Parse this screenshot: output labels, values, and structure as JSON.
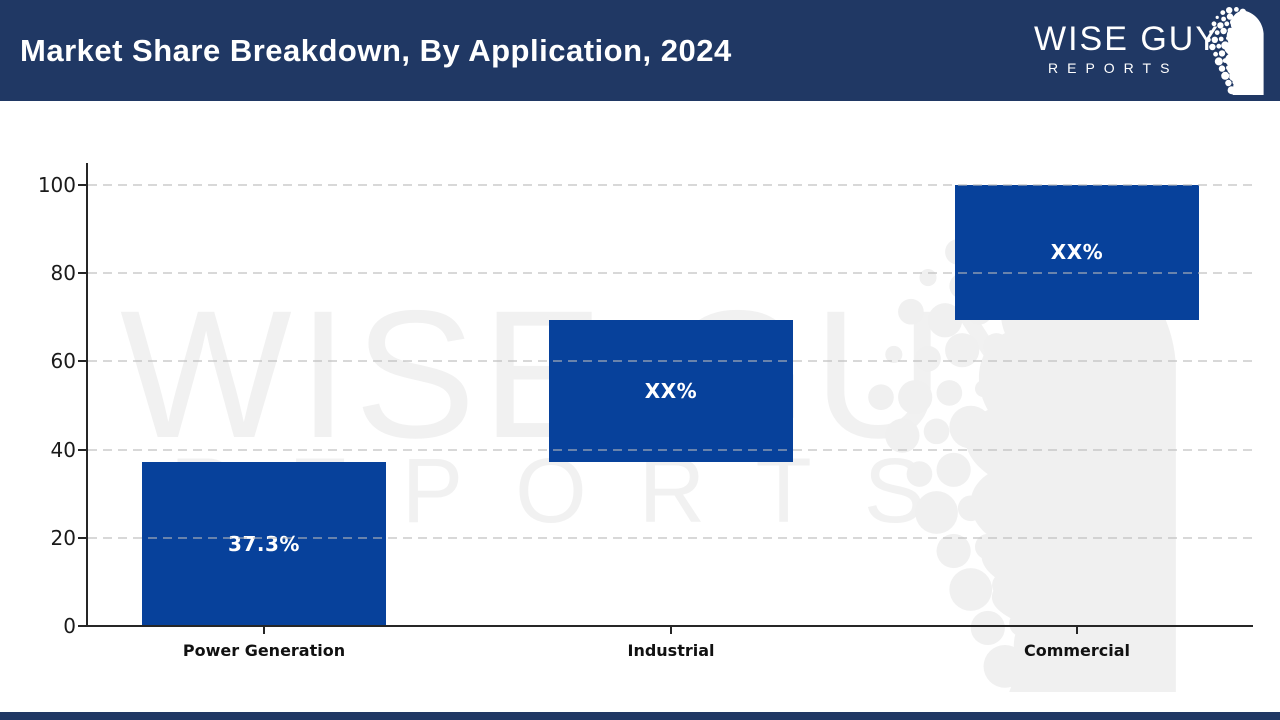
{
  "header": {
    "title": "Market Share Breakdown, By Application, 2024",
    "logo": {
      "wordmark": "WISE GUY",
      "subtext": "REPORTS"
    }
  },
  "watermark": {
    "wordmark": "WISE GUY",
    "subtext": "REPORTS"
  },
  "chart_data": {
    "type": "bar",
    "variant": "waterfall",
    "title": "Market Share Breakdown, By Application, 2024",
    "categories": [
      "Power Generation",
      "Industrial",
      "Commercial"
    ],
    "segments": [
      {
        "category": "Power Generation",
        "start": 0,
        "end": 37.3,
        "label": "37.3%"
      },
      {
        "category": "Industrial",
        "start": 37.3,
        "end": 69.5,
        "label": "XX%"
      },
      {
        "category": "Commercial",
        "start": 69.5,
        "end": 100,
        "label": "XX%"
      }
    ],
    "ylim": [
      0,
      100
    ],
    "yticks": [
      0,
      20,
      40,
      60,
      80,
      100
    ],
    "xlabel": "",
    "ylabel": "",
    "grid": {
      "axis": "y",
      "style": "dashed",
      "color": "#d9d9d9",
      "over_bars": true
    },
    "legend": "none",
    "bar_color": "#07419B",
    "bar_label_color": "#ffffff"
  },
  "colors": {
    "header_bg": "#203864",
    "footer_bg": "#203864",
    "chart_bg": "#ffffff",
    "bar": "#07419B",
    "axis": "#262626",
    "gridline": "#d9d9d9",
    "watermark": "#f1f1f1",
    "title_text": "#ffffff"
  }
}
